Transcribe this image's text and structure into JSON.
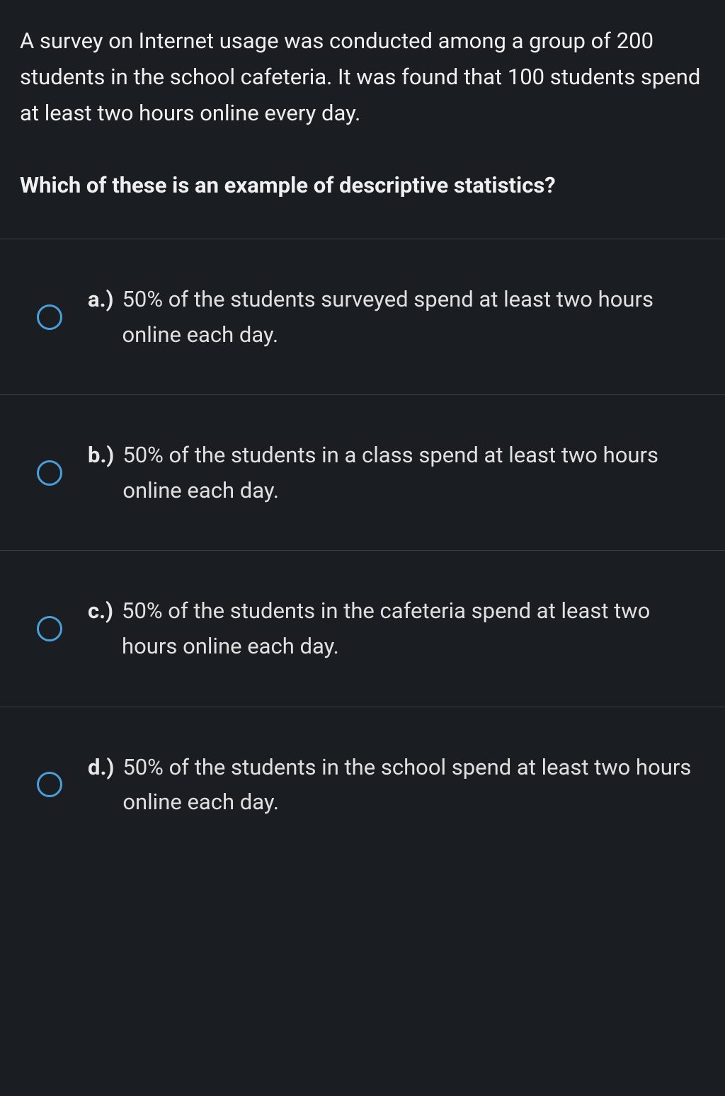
{
  "question": {
    "text": "A survey on Internet usage was conducted among a group of 200 students in the school cafeteria. It was found that 100 students spend at least two hours online every day.",
    "prompt": "Which of these is an example of descriptive statistics?"
  },
  "options": [
    {
      "label": "a.)",
      "text": "50% of the students surveyed spend at least two hours online each day."
    },
    {
      "label": "b.)",
      "text": "50% of the students in a class spend at least two hours online each day."
    },
    {
      "label": "c.)",
      "text": "50% of the students in the cafeteria spend at least two hours online each day."
    },
    {
      "label": "d.)",
      "text": "50% of the students in the school spend at least two hours online each day."
    }
  ],
  "styling": {
    "background_color": "#1a1d21",
    "text_color": "#e8e8e8",
    "radio_border_color": "#4a9fd8",
    "divider_color": "#3a3d42",
    "body_font_size": 31,
    "prompt_font_weight": 700,
    "label_font_weight": 700
  }
}
